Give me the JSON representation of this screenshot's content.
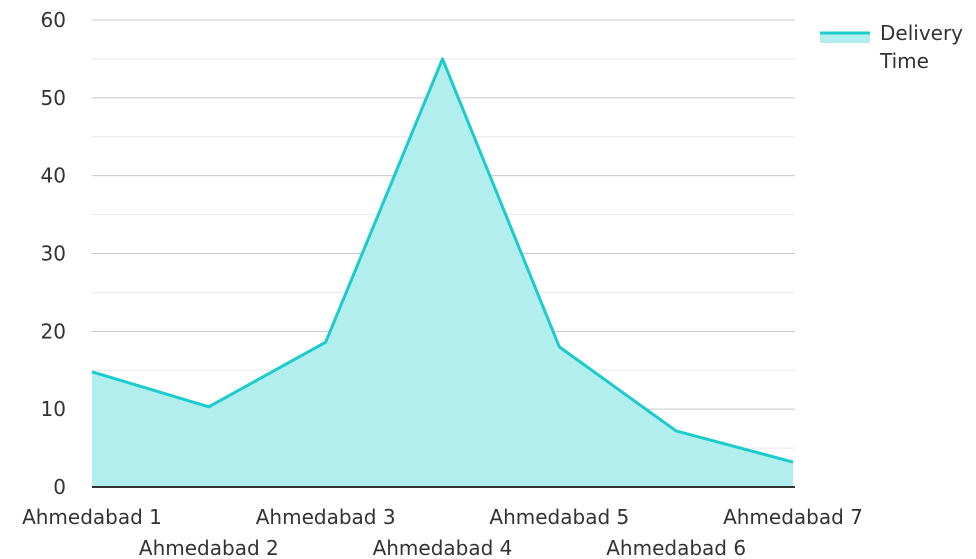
{
  "chart_data": {
    "type": "area",
    "categories": [
      "Ahmedabad 1",
      "Ahmedabad 2",
      "Ahmedabad 3",
      "Ahmedabad 4",
      "Ahmedabad 5",
      "Ahmedabad 6",
      "Ahmedabad 7"
    ],
    "series": [
      {
        "name": "Delivery Time",
        "values": [
          14.8,
          10.3,
          18.6,
          55.0,
          18.0,
          7.2,
          3.2
        ]
      }
    ],
    "legend": {
      "position": "top-right",
      "lines": [
        "Delivery",
        "Time"
      ]
    },
    "ylim": [
      0,
      60
    ],
    "yticks": [
      0,
      10,
      20,
      30,
      40,
      50,
      60
    ],
    "grid": true,
    "colors": {
      "line": "#1ccccc",
      "fill": "#b2eeee",
      "major_grid": "#c8c8c8",
      "minor_grid": "#e8e8e8",
      "axis": "#333333"
    }
  }
}
